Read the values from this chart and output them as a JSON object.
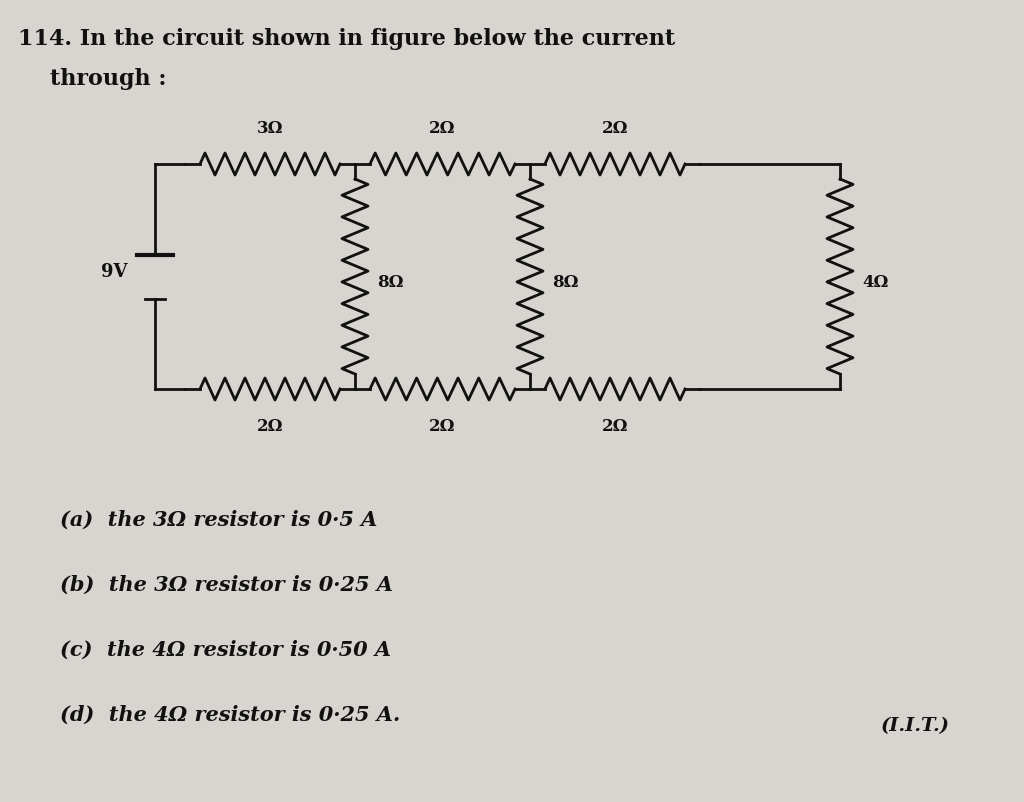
{
  "background_color": "#d8d5d0",
  "text_color": "#111111",
  "title_num": "114.",
  "title_text": "In the circuit shown in figure below the current",
  "title_text2": "through :",
  "battery_label": "9V",
  "resistor_labels_top": [
    "3Ω",
    "2Ω",
    "2Ω"
  ],
  "resistor_labels_vert": [
    "8Ω",
    "8Ω",
    "4Ω"
  ],
  "resistor_labels_bot": [
    "2Ω",
    "2Ω",
    "2Ω"
  ],
  "options": [
    "(a)  the 3Ω resistor is 0·5 A",
    "(b)  the 3Ω resistor is 0·25 A",
    "(c)  the 4Ω resistor is 0·50 A",
    "(d)  the 4Ω resistor is 0·25 A."
  ],
  "iit_label": "(I.I.T.)"
}
